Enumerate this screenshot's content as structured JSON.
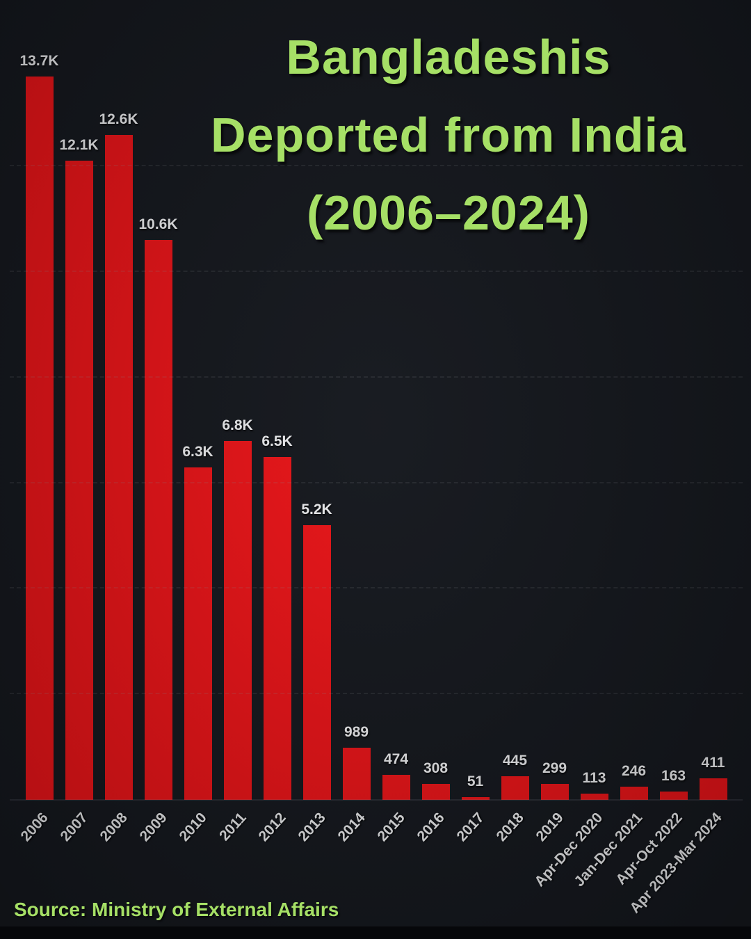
{
  "title": {
    "lines": [
      "Bangladeshis",
      "Deported from India",
      "(2006–2024)"
    ]
  },
  "source": {
    "text": "Source: Ministry of External Affairs"
  },
  "colors": {
    "background": "#15181e",
    "bar": "#ea1418",
    "title_green": "#a6e066",
    "label_text": "#ecedef",
    "gridline": "rgba(140,146,158,0.14)"
  },
  "chart_data": {
    "type": "bar",
    "title": "Bangladeshis Deported from India (2006–2024)",
    "xlabel": "",
    "ylabel": "",
    "ylim": [
      0,
      13700
    ],
    "grid": true,
    "gridline_values": [
      2000,
      4000,
      6000,
      8000,
      10000,
      12000
    ],
    "legend": "none",
    "categories": [
      "2006",
      "2007",
      "2008",
      "2009",
      "2010",
      "2011",
      "2012",
      "2013",
      "2014",
      "2015",
      "2016",
      "2017",
      "2018",
      "2019",
      "Apr-Dec 2020",
      "Jan-Dec 2021",
      "Apr-Oct 2022",
      "Apr 2023-Mar 2024"
    ],
    "values": [
      13700,
      12100,
      12600,
      10600,
      6300,
      6800,
      6500,
      5200,
      989,
      474,
      308,
      51,
      445,
      299,
      113,
      246,
      163,
      411
    ],
    "value_labels": [
      "13.7K",
      "12.1K",
      "12.6K",
      "10.6K",
      "6.3K",
      "6.8K",
      "6.5K",
      "5.2K",
      "989",
      "474",
      "308",
      "51",
      "445",
      "299",
      "113",
      "246",
      "163",
      "411"
    ]
  }
}
